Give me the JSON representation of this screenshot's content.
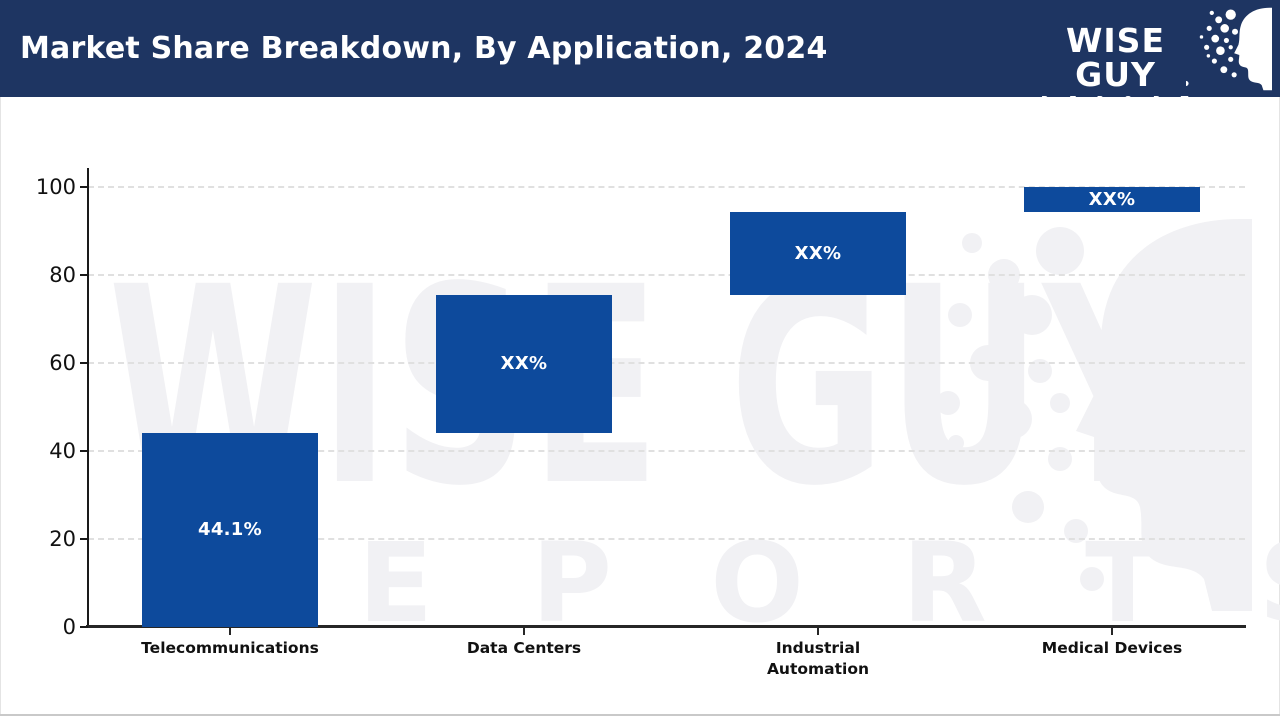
{
  "header": {
    "title": "Market Share Breakdown, By Application, 2024",
    "logo": {
      "line1": "WISE GUY",
      "line2": "R E P O R T S"
    }
  },
  "watermark": {
    "line1": "WISE GUY",
    "line2": "R E P O R T S"
  },
  "chart_data": {
    "type": "bar",
    "subtype": "waterfall-segments",
    "title": "Market Share Breakdown, By Application, 2024",
    "categories": [
      "Telecommunications",
      "Data Centers",
      "Industrial Automation",
      "Medical Devices"
    ],
    "x_labels_lines": [
      [
        "Telecommunications"
      ],
      [
        "Data Centers"
      ],
      [
        "Industrial",
        "Automation"
      ],
      [
        "Medical Devices"
      ]
    ],
    "bars": [
      {
        "category": "Telecommunications",
        "start": 0,
        "end": 44.1,
        "label": "44.1%"
      },
      {
        "category": "Data Centers",
        "start": 44.1,
        "end": 75.5,
        "label": "XX%"
      },
      {
        "category": "Industrial Automation",
        "start": 75.5,
        "end": 94.3,
        "label": "XX%"
      },
      {
        "category": "Medical Devices",
        "start": 94.3,
        "end": 100,
        "label": "XX%"
      }
    ],
    "ylim": [
      0,
      100
    ],
    "y_ticks": [
      0,
      20,
      40,
      60,
      80,
      100
    ],
    "grid": "dashed-horizontal",
    "legend": "none",
    "bar_color": "#0d4a9c",
    "bar_label_color": "#ffffff",
    "header_color": "#1e3562",
    "axis_color": "#1a1a1a"
  }
}
